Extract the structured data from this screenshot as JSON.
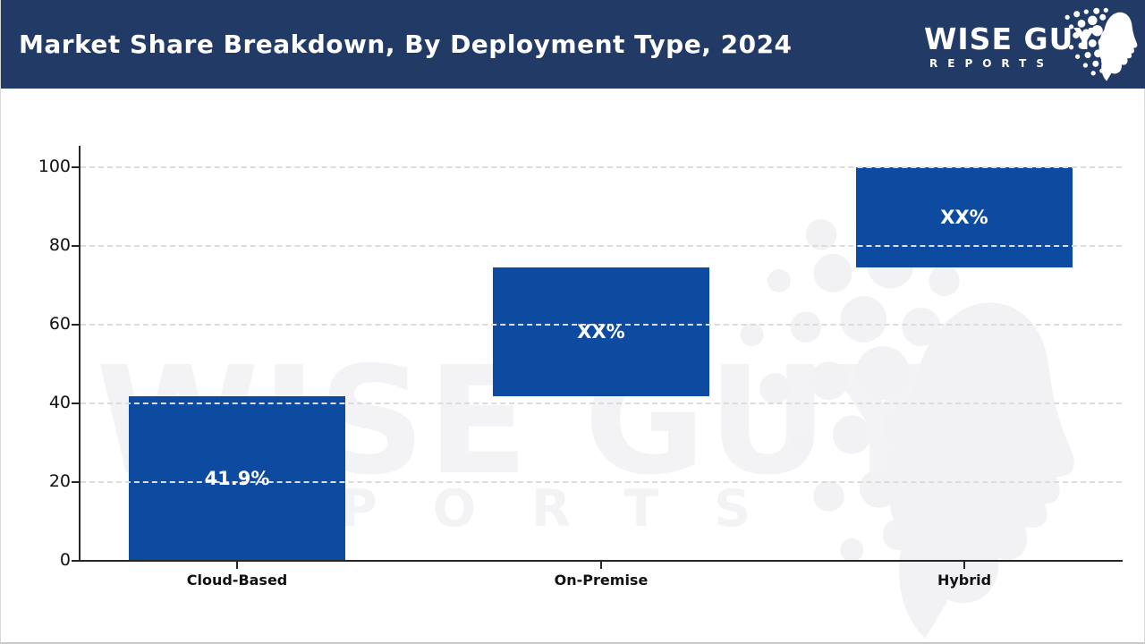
{
  "header": {
    "title": "Market Share Breakdown, By Deployment Type, 2024",
    "bg_color": "#213a66",
    "logo": {
      "line1": "WISE GUY",
      "line2": "REPORTS",
      "icon": "face-profile-dots-icon"
    }
  },
  "watermark": {
    "line1": "WISE GUY",
    "line2": "REPORTS",
    "icon": "face-profile-dots-icon"
  },
  "chart_data": {
    "type": "bar",
    "subtype": "waterfall",
    "title": "Market Share Breakdown, By Deployment Type, 2024",
    "categories": [
      "Cloud-Based",
      "On-Premise",
      "Hybrid"
    ],
    "series": [
      {
        "name": "Market Share (%)",
        "segments": [
          {
            "category": "Cloud-Based",
            "start": 0,
            "end": 41.9,
            "label": "41.9%"
          },
          {
            "category": "On-Premise",
            "start": 41.9,
            "end": 74.5,
            "label": "XX%"
          },
          {
            "category": "Hybrid",
            "start": 74.5,
            "end": 100,
            "label": "XX%"
          }
        ]
      }
    ],
    "xlabel": "",
    "ylabel": "",
    "ylim": [
      0,
      105
    ],
    "yticks": [
      0,
      20,
      40,
      60,
      80,
      100
    ],
    "grid": "horizontal-dashed",
    "legend": "none",
    "bar_color": "#0c4ba0",
    "bar_label_color": "#ffffff",
    "axis_color": "#262626",
    "grid_color": "#dcdcdc",
    "tick_label_color": "#111111"
  }
}
